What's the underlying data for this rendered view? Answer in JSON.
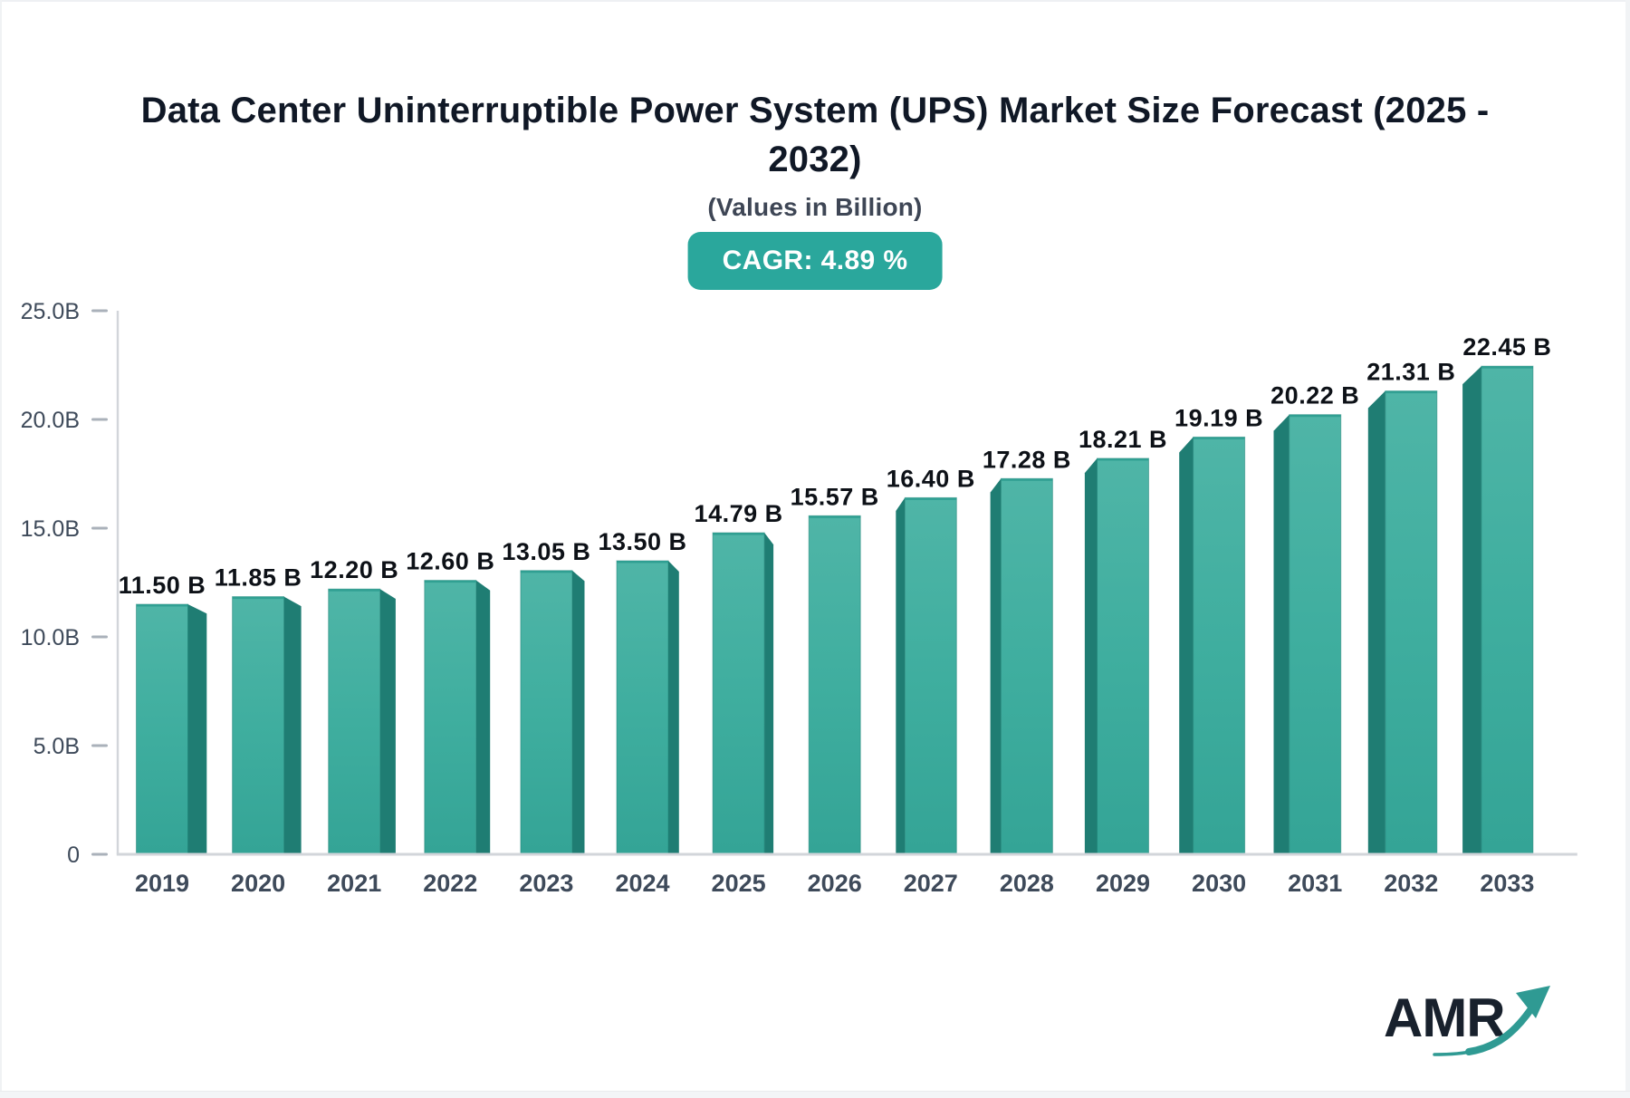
{
  "chart_data": {
    "type": "bar",
    "bar_style": "3d-perspective-columns",
    "title": "Data Center Uninterruptible Power System (UPS) Market Size Forecast (2025 - 2032)",
    "title_lines": [
      "Data Center Uninterruptible Power System (UPS) Market Size Forecast (2025 -",
      "2032)"
    ],
    "subtitle": "(Values in Billion)",
    "cagr_label": "CAGR: 4.89 %",
    "categories": [
      "2019",
      "2020",
      "2021",
      "2022",
      "2023",
      "2024",
      "2025",
      "2026",
      "2027",
      "2028",
      "2029",
      "2030",
      "2031",
      "2032",
      "2033"
    ],
    "values": [
      11.5,
      11.85,
      12.2,
      12.6,
      13.05,
      13.5,
      14.79,
      15.57,
      16.4,
      17.28,
      18.21,
      19.19,
      20.22,
      21.31,
      22.45
    ],
    "value_labels": [
      "11.50 B",
      "11.85 B",
      "12.20 B",
      "12.60 B",
      "13.05 B",
      "13.50 B",
      "14.79 B",
      "15.57 B",
      "16.40 B",
      "17.28 B",
      "18.21 B",
      "19.19 B",
      "20.22 B",
      "21.31 B",
      "22.45 B"
    ],
    "y_ticks": [
      {
        "value": 25,
        "label": "25.0B"
      },
      {
        "value": 20,
        "label": "20.0B"
      },
      {
        "value": 15,
        "label": "15.0B"
      },
      {
        "value": 10,
        "label": "10.0B"
      },
      {
        "value": 5,
        "label": "5.0B"
      },
      {
        "value": 0,
        "label": "0"
      }
    ],
    "ylim": [
      0,
      25
    ],
    "xlabel": "",
    "ylabel": "",
    "grid": false,
    "legend": "none"
  },
  "logo": {
    "text": "AMR",
    "arrow_icon": "growth-arrow-icon"
  },
  "colors": {
    "bar_front_top": "#4fb5a7",
    "bar_front_mid": "#3fae9f",
    "bar_front_bottom": "#34a496",
    "bar_side": "#1f7d73",
    "bar_top_edge": "#2b9c8f",
    "bar_outline": "rgba(26,125,114,0.5)",
    "badge_bg": "#2aa79c",
    "badge_text": "#ffffff",
    "axis_line": "#d2d5da",
    "tick_dash": "#aab1ba",
    "axis_text": "#3e4a5a",
    "value_text": "#0d1117",
    "title_text": "#101826",
    "subtitle_text": "#3e4655",
    "logo_text": "#18212d",
    "logo_arrow": "#2f9a93"
  }
}
